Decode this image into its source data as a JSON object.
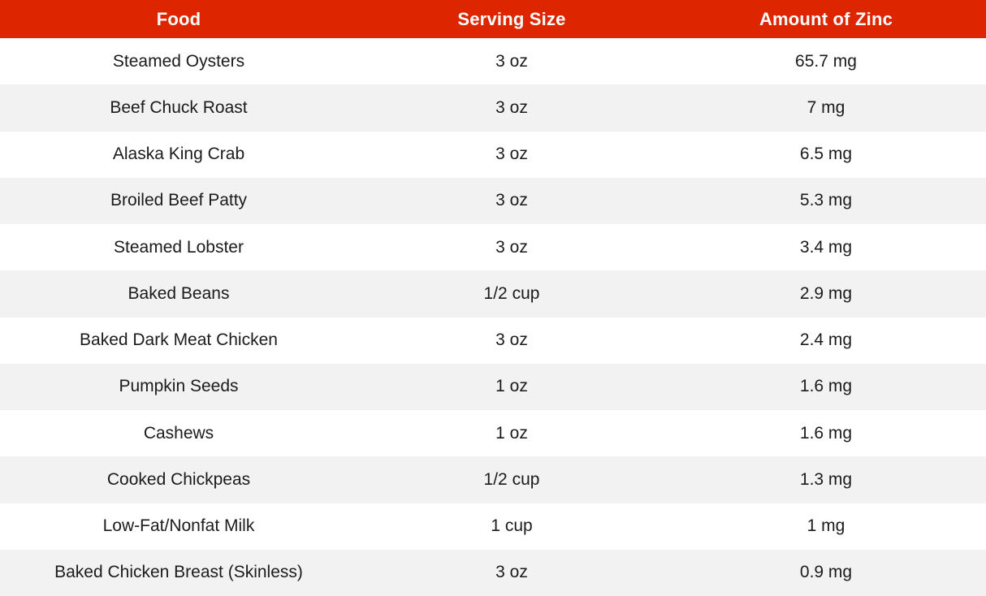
{
  "colors": {
    "header_bg": "#dd2600",
    "header_text": "#ffffff",
    "row_bg": "#ffffff",
    "row_alt_bg": "#f2f2f2",
    "body_text": "#1b1b1b"
  },
  "chart_data": {
    "type": "table",
    "columns": [
      "Food",
      "Serving Size",
      "Amount of Zinc"
    ],
    "rows": [
      [
        "Steamed Oysters",
        "3 oz",
        "65.7 mg"
      ],
      [
        "Beef Chuck Roast",
        "3 oz",
        "7 mg"
      ],
      [
        "Alaska King Crab",
        "3 oz",
        "6.5 mg"
      ],
      [
        "Broiled Beef Patty",
        "3 oz",
        "5.3 mg"
      ],
      [
        "Steamed Lobster",
        "3 oz",
        "3.4 mg"
      ],
      [
        "Baked Beans",
        "1/2 cup",
        "2.9 mg"
      ],
      [
        "Baked Dark Meat Chicken",
        "3 oz",
        "2.4 mg"
      ],
      [
        "Pumpkin Seeds",
        "1 oz",
        "1.6 mg"
      ],
      [
        "Cashews",
        "1 oz",
        "1.6 mg"
      ],
      [
        "Cooked Chickpeas",
        "1/2 cup",
        "1.3 mg"
      ],
      [
        "Low-Fat/Nonfat Milk",
        "1 cup",
        "1 mg"
      ],
      [
        "Baked Chicken Breast (Skinless)",
        "3 oz",
        "0.9 mg"
      ]
    ],
    "zinc_mg_values": [
      65.7,
      7,
      6.5,
      5.3,
      3.4,
      2.9,
      2.4,
      1.6,
      1.6,
      1.3,
      1,
      0.9
    ],
    "legend_position": "none",
    "grid": "row-striping"
  }
}
